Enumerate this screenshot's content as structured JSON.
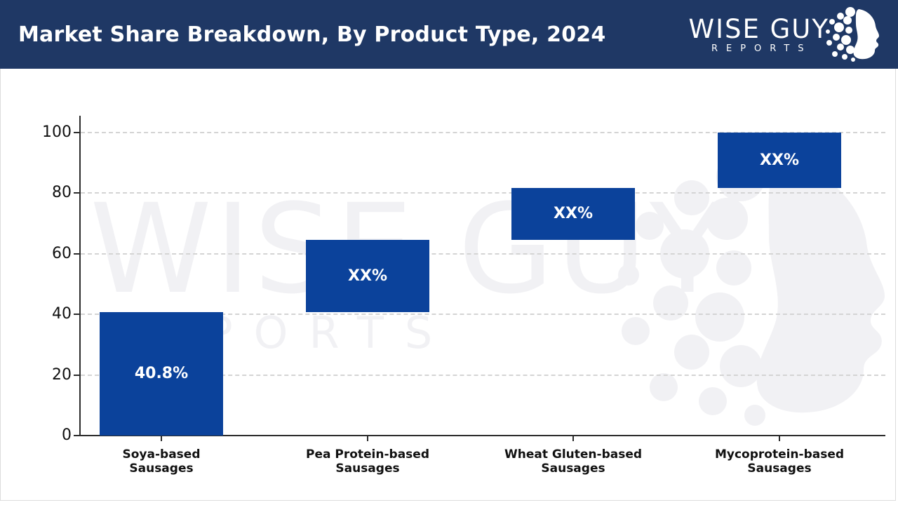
{
  "header": {
    "title": "Market Share Breakdown, By Product Type, 2024",
    "logo": {
      "line1": "WISE GUY",
      "line2": "REPORTS"
    }
  },
  "watermark": {
    "line1": "WISE GUY",
    "line2": "REPORTS"
  },
  "chart_data": {
    "type": "bar",
    "subtype": "waterfall",
    "title": "Market Share Breakdown, By Product Type, 2024",
    "xlabel": "",
    "ylabel": "",
    "ylim": [
      0,
      100
    ],
    "yticks": [
      0,
      20,
      40,
      60,
      80,
      100
    ],
    "grid": true,
    "categories": [
      "Soya-based\nSausages",
      "Pea Protein-based\nSausages",
      "Wheat Gluten-based\nSausages",
      "Mycoprotein-based\nSausages"
    ],
    "segments": [
      {
        "start": 0,
        "end": 40.8,
        "label": "40.8%"
      },
      {
        "start": 40.8,
        "end": 64.6,
        "label": "XX%"
      },
      {
        "start": 64.6,
        "end": 81.7,
        "label": "XX%"
      },
      {
        "start": 81.7,
        "end": 100,
        "label": "XX%"
      }
    ],
    "bar_color": "#0b429b",
    "bar_label_color": "#ffffff"
  },
  "colors": {
    "header_bg": "#1f3865",
    "axis": "#2b2b2b",
    "gridline": "#d4d4d4",
    "watermark": "#f1f1f4"
  }
}
